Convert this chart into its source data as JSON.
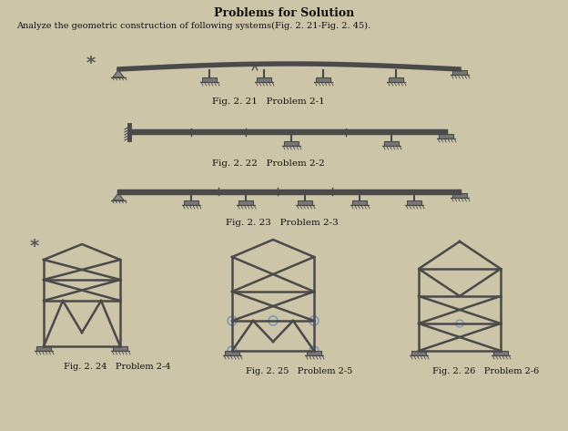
{
  "title": "Problems for Solution",
  "subtitle": "Analyze the geometric construction of following systems(Fig. 2. 21-Fig. 2. 45).",
  "bg_color": "#ccc5a8",
  "fig_labels": [
    "Fig. 2. 21   Problem 2-1",
    "Fig. 2. 22   Problem 2-2",
    "Fig. 2. 23   Problem 2-3",
    "Fig. 2. 24   Problem 2-4",
    "Fig. 2. 25   Problem 2-5",
    "Fig. 2. 26   Problem 2-6"
  ],
  "beam_color": "#4a4a4a",
  "text_color": "#111111",
  "beam_lw": 2.5,
  "truss_lw": 1.8,
  "support_lw": 1.2
}
